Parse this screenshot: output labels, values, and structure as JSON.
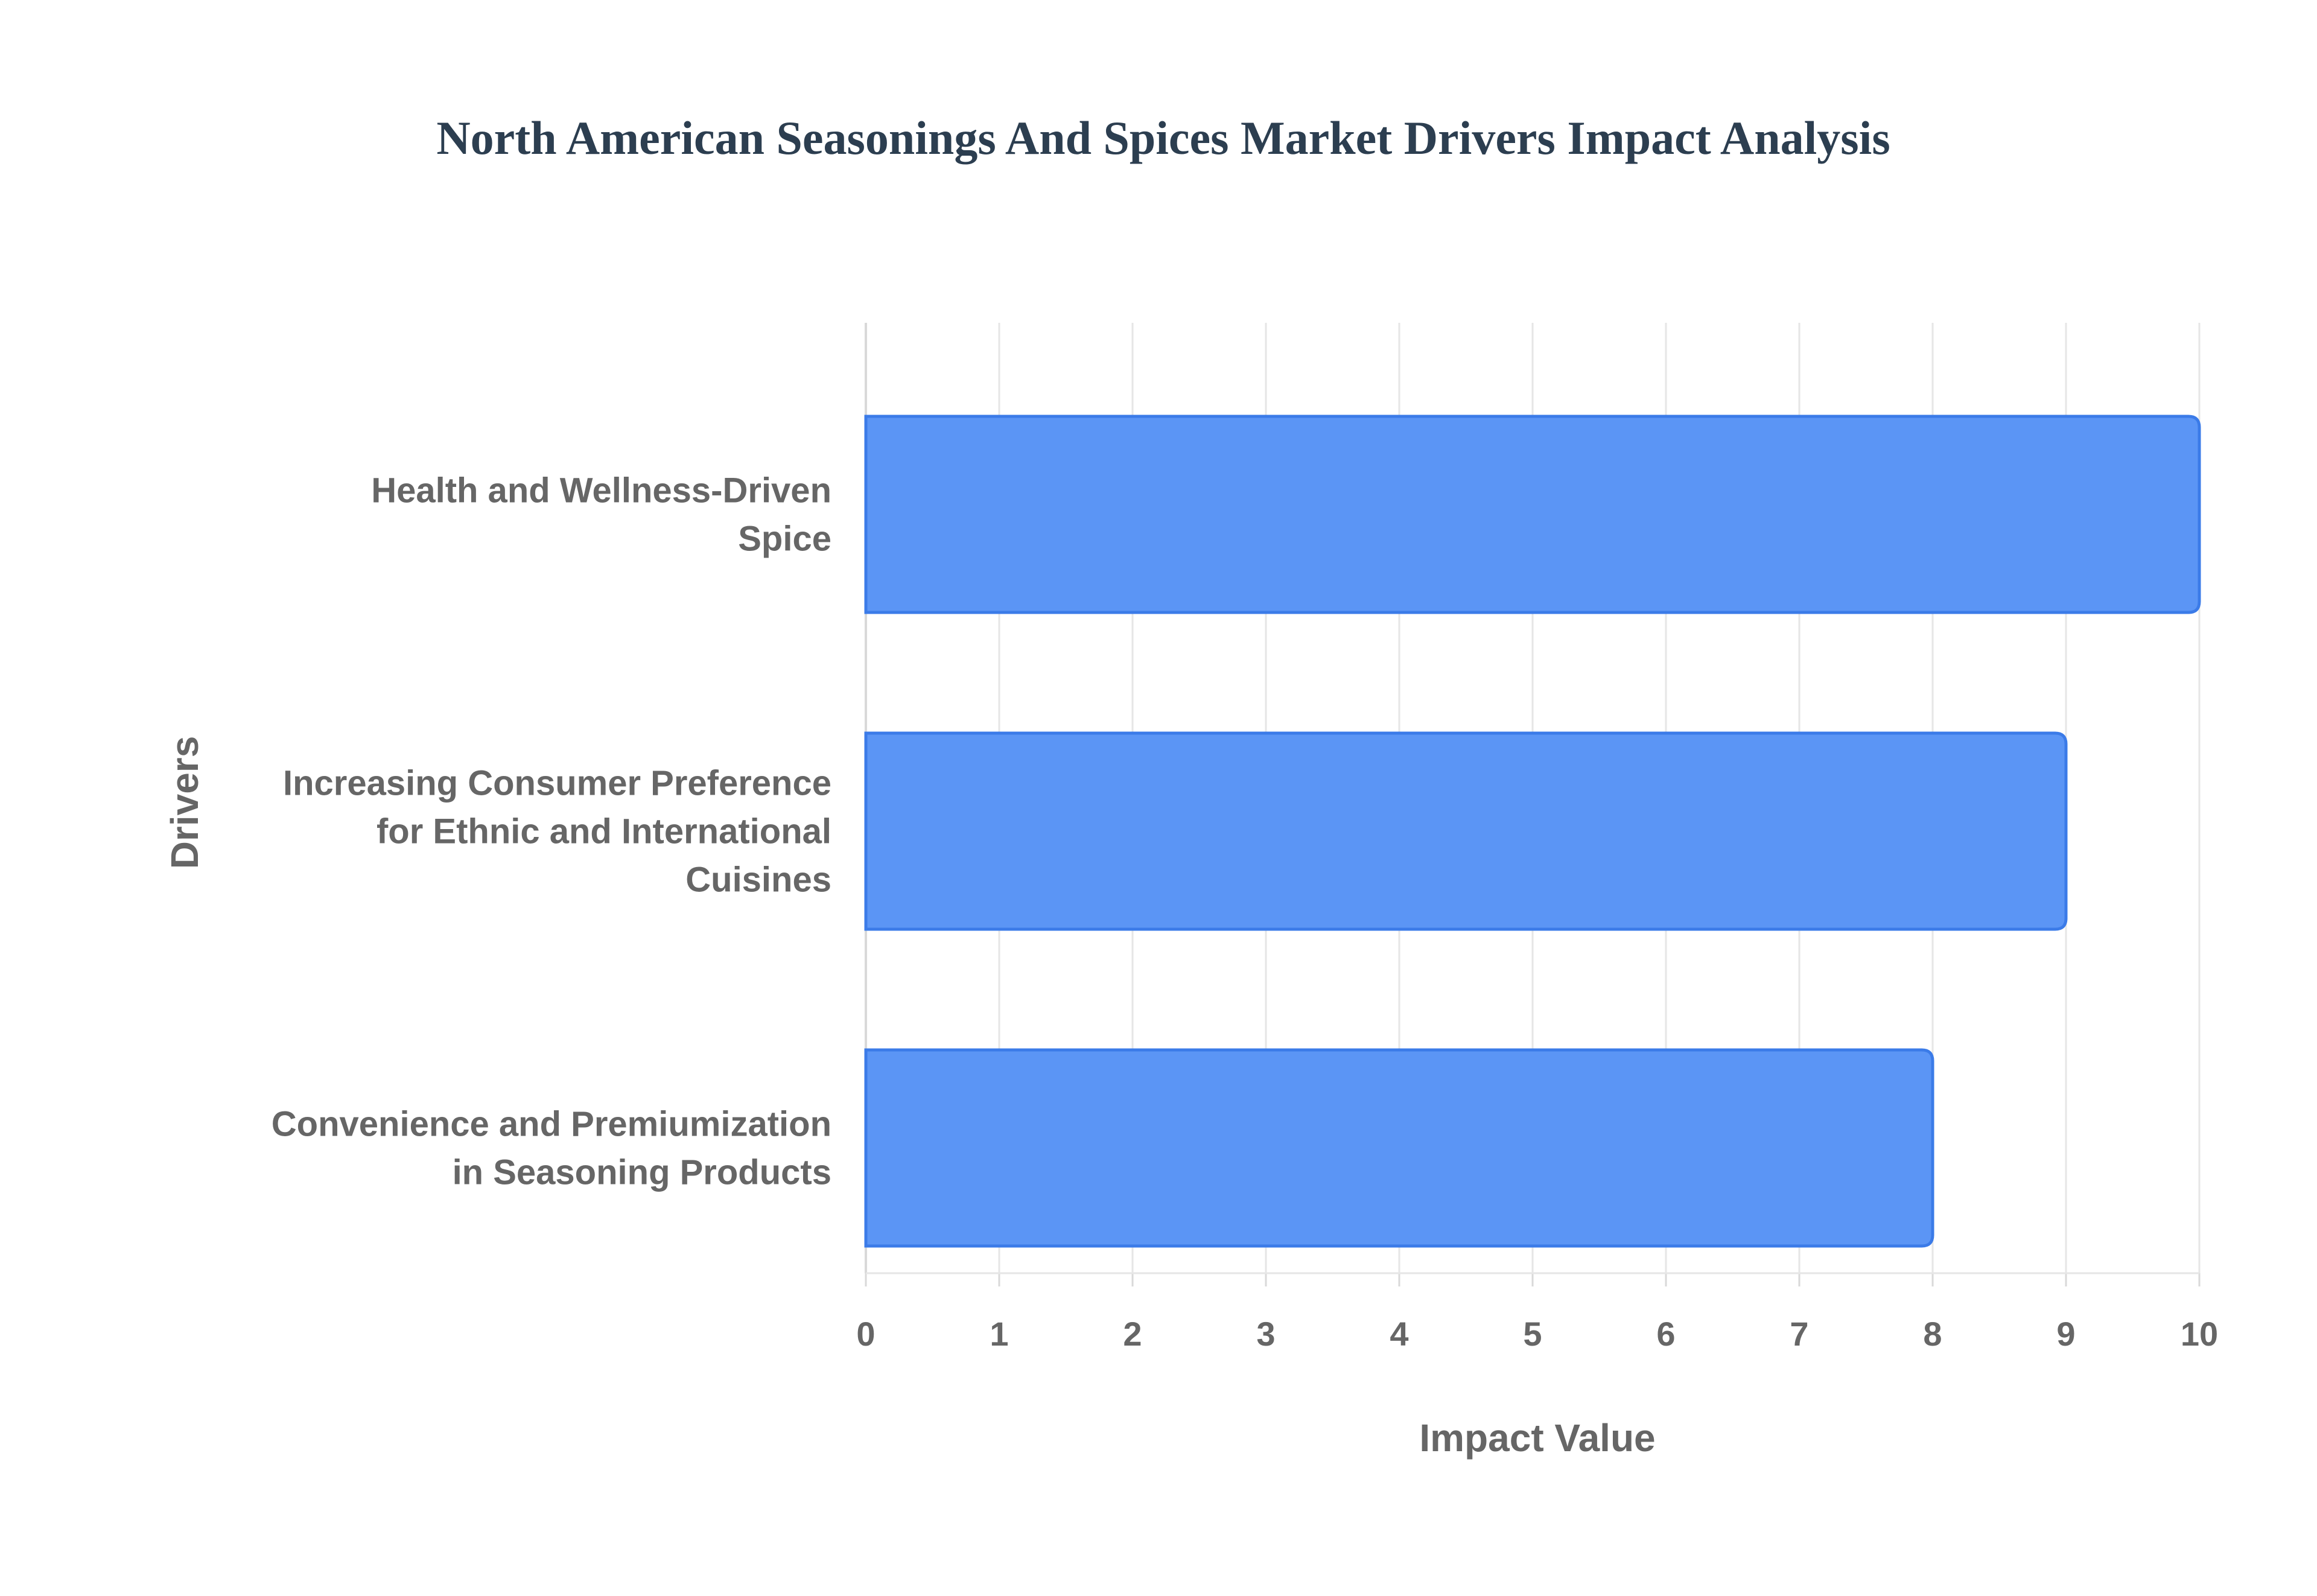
{
  "chart_data": {
    "type": "bar",
    "orientation": "horizontal",
    "title": "North American Seasonings And Spices Market Drivers Impact Analysis",
    "xlabel": "Impact Value",
    "ylabel": "Drivers",
    "xlim": [
      0,
      10
    ],
    "x_ticks": [
      0,
      1,
      2,
      3,
      4,
      5,
      6,
      7,
      8,
      9,
      10
    ],
    "grid": true,
    "legend": "none",
    "categories": [
      [
        "Health and Wellness-Driven",
        "Spice"
      ],
      [
        "Increasing Consumer Preference",
        "for Ethnic and International",
        "Cuisines"
      ],
      [
        "Convenience and Premiumization",
        "in Seasoning Products"
      ]
    ],
    "values": [
      10,
      9,
      8
    ],
    "colors": {
      "bar_fill": "#5b95f5",
      "bar_stroke": "#3b7be8",
      "grid": "#e6e6e6",
      "axis": "#d9d9d9",
      "title": "#2c3e50",
      "label": "#666666"
    }
  }
}
